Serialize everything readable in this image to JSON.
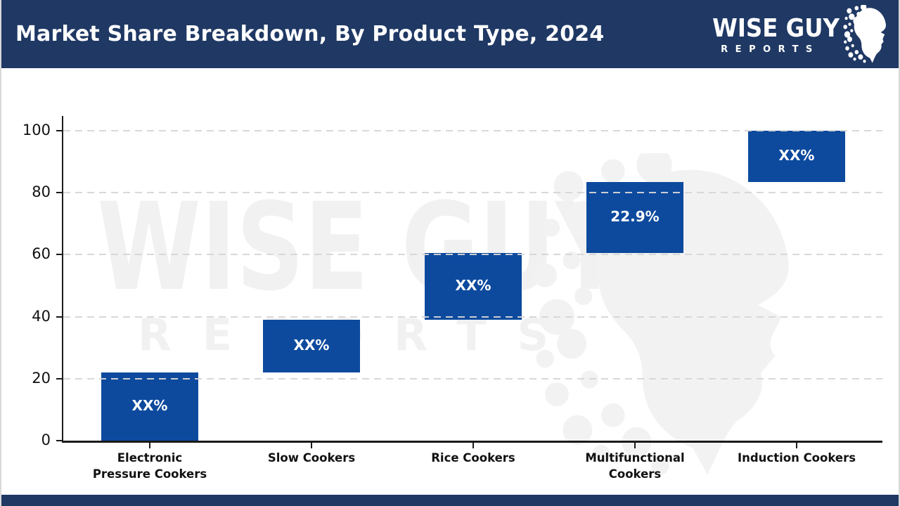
{
  "header": {
    "brand": {
      "line1": "WISE GUY",
      "line2": "REPORTS"
    }
  },
  "watermark": {
    "line1": "WISE GUY",
    "line2": "REPORTS"
  },
  "colors": {
    "header_bg": "#1f3864",
    "footer_bg": "#1f3864",
    "bar": "#0d4a9e",
    "bar_label": "#ffffff",
    "grid": "#d6d6d6",
    "axis": "#1a1a1a",
    "watermark": "#f1f1f1"
  },
  "chart_data": {
    "type": "bar",
    "subtype": "waterfall",
    "title": "Market Share Breakdown, By Product Type, 2024",
    "categories": [
      "Electronic\nPressure Cookers",
      "Slow Cookers",
      "Rice Cookers",
      "Multifunctional\nCookers",
      "Induction Cookers"
    ],
    "segments": [
      {
        "category": "Electronic Pressure Cookers",
        "label": "XX%",
        "start": 0,
        "end": 22
      },
      {
        "category": "Slow Cookers",
        "label": "XX%",
        "start": 22,
        "end": 39
      },
      {
        "category": "Rice Cookers",
        "label": "XX%",
        "start": 39,
        "end": 60.6
      },
      {
        "category": "Multifunctional Cookers",
        "label": "22.9%",
        "start": 60.6,
        "end": 83.5
      },
      {
        "category": "Induction Cookers",
        "label": "XX%",
        "start": 83.5,
        "end": 100
      }
    ],
    "ylim": [
      0,
      100
    ],
    "yticks": [
      0,
      20,
      40,
      60,
      80,
      100
    ],
    "xlabel": "",
    "ylabel": "",
    "grid": "horizontal-dashed",
    "legend": "none"
  }
}
